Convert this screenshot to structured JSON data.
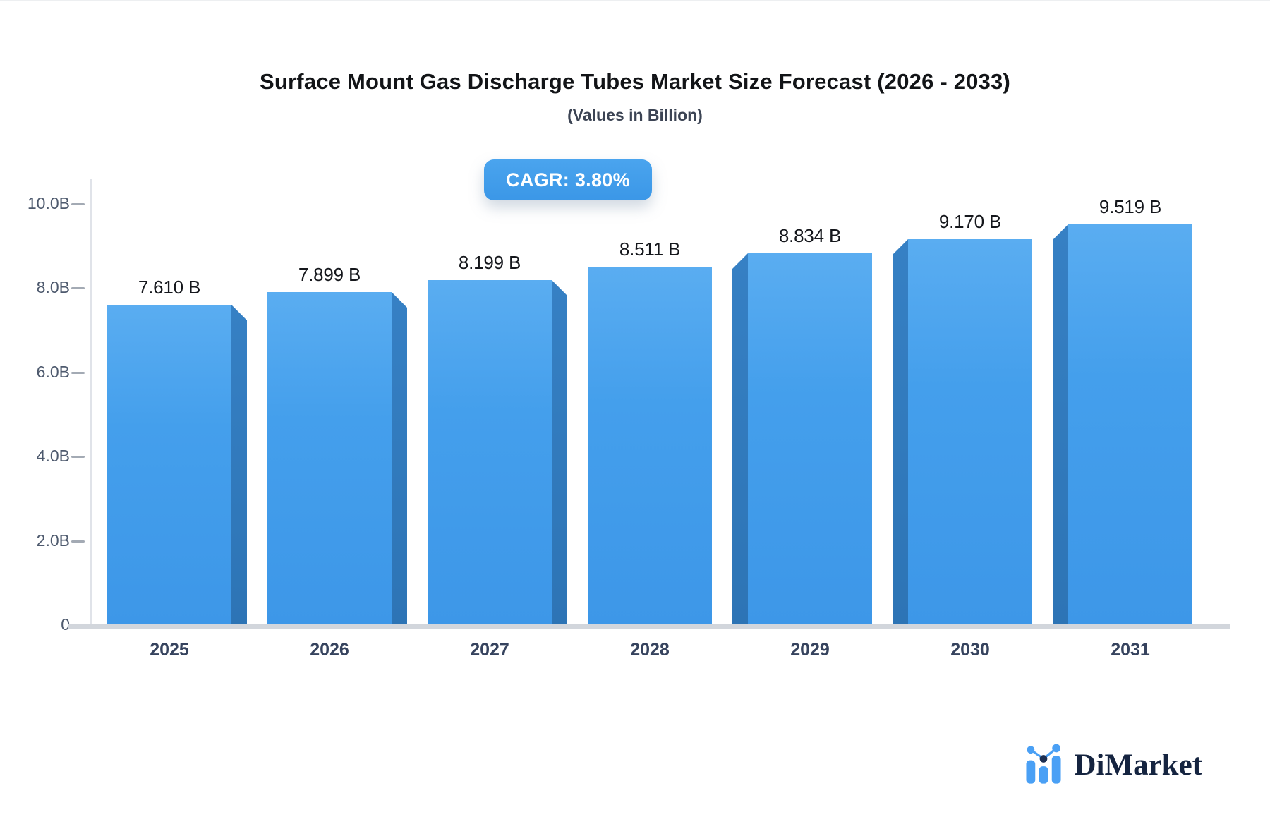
{
  "header": {
    "title": "Surface Mount Gas Discharge Tubes Market Size Forecast (2026 - 2033)",
    "subtitle": "(Values in Billion)"
  },
  "cagr_badge": {
    "label": "CAGR: 3.80%",
    "color": "#3E9BE9"
  },
  "chart_data": {
    "type": "bar",
    "title": "Surface Mount Gas Discharge Tubes Market Size Forecast (2026 - 2033)",
    "subtitle": "(Values in Billion)",
    "annotation": "CAGR: 3.80%",
    "categories": [
      "2025",
      "2026",
      "2027",
      "2028",
      "2029",
      "2030",
      "2031"
    ],
    "values": [
      7.61,
      7.899,
      8.199,
      8.511,
      8.834,
      9.17,
      9.519
    ],
    "value_labels": [
      "7.610 B",
      "7.899 B",
      "8.199 B",
      "8.511 B",
      "8.834 B",
      "9.170 B",
      "9.519 B"
    ],
    "xlabel": "",
    "ylabel": "",
    "ylim": [
      0,
      10
    ],
    "yticks": [
      {
        "value": 10,
        "label": "10.0B"
      },
      {
        "value": 8,
        "label": "8.0B"
      },
      {
        "value": 6,
        "label": "6.0B"
      },
      {
        "value": 4,
        "label": "4.0B"
      },
      {
        "value": 2,
        "label": "2.0B"
      },
      {
        "value": 0,
        "label": "0"
      }
    ],
    "grid": "off",
    "legend": "none",
    "bar_face_color": "#419BEA",
    "bar_side_color": "#2E76B6",
    "style": "3d-beveled bars facing center"
  },
  "branding": {
    "logo_text": "DiMarket",
    "logo_icon": "bar-line-chart-icon",
    "logo_text_color": "#152440",
    "logo_accent_color": "#4AA0F5"
  }
}
